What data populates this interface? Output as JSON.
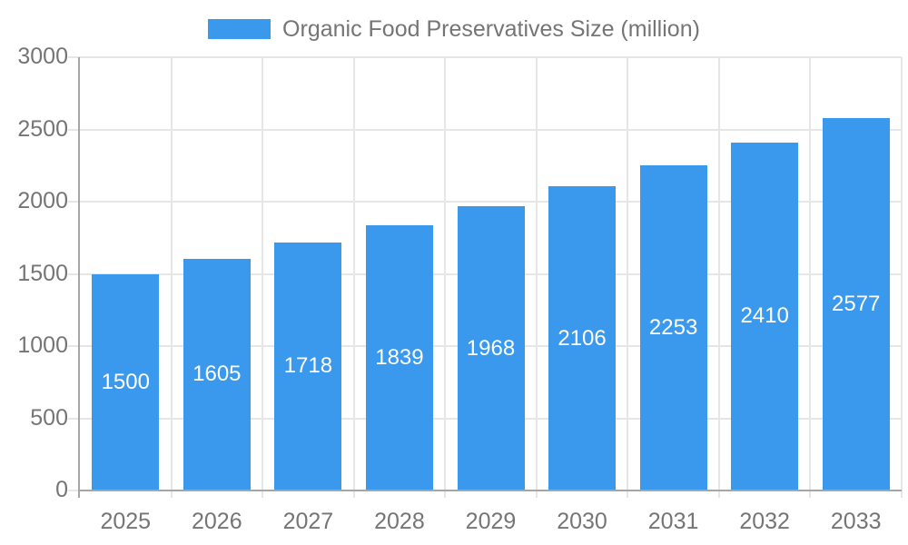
{
  "legend": {
    "label": "Organic Food Preservatives Size (million)"
  },
  "chart_data": {
    "type": "bar",
    "title": "Organic Food Preservatives Size (million)",
    "series_name": "Organic Food Preservatives Size (million)",
    "categories": [
      "2025",
      "2026",
      "2027",
      "2028",
      "2029",
      "2030",
      "2031",
      "2032",
      "2033"
    ],
    "values": [
      1500,
      1605,
      1718,
      1839,
      1968,
      2106,
      2253,
      2410,
      2577
    ],
    "value_labels": [
      "1500",
      "1605",
      "1718",
      "1839",
      "1968",
      "2106",
      "2253",
      "2410",
      "2577"
    ],
    "xlabel": "",
    "ylabel": "",
    "ylim": [
      0,
      3000
    ],
    "yticks": [
      0,
      500,
      1000,
      1500,
      2000,
      2500,
      3000
    ],
    "ytick_labels": [
      "0",
      "500",
      "1000",
      "1500",
      "2000",
      "2500",
      "3000"
    ],
    "grid": true,
    "legend_position": "top",
    "colors": {
      "bar": "#3A99EC",
      "value_label": "#FFFFFF",
      "axis_label": "#757575",
      "legend_label": "#757575",
      "gridline": "#E6E6E6",
      "axis_line": "#A6A6A6",
      "background": "#FFFFFF"
    }
  }
}
